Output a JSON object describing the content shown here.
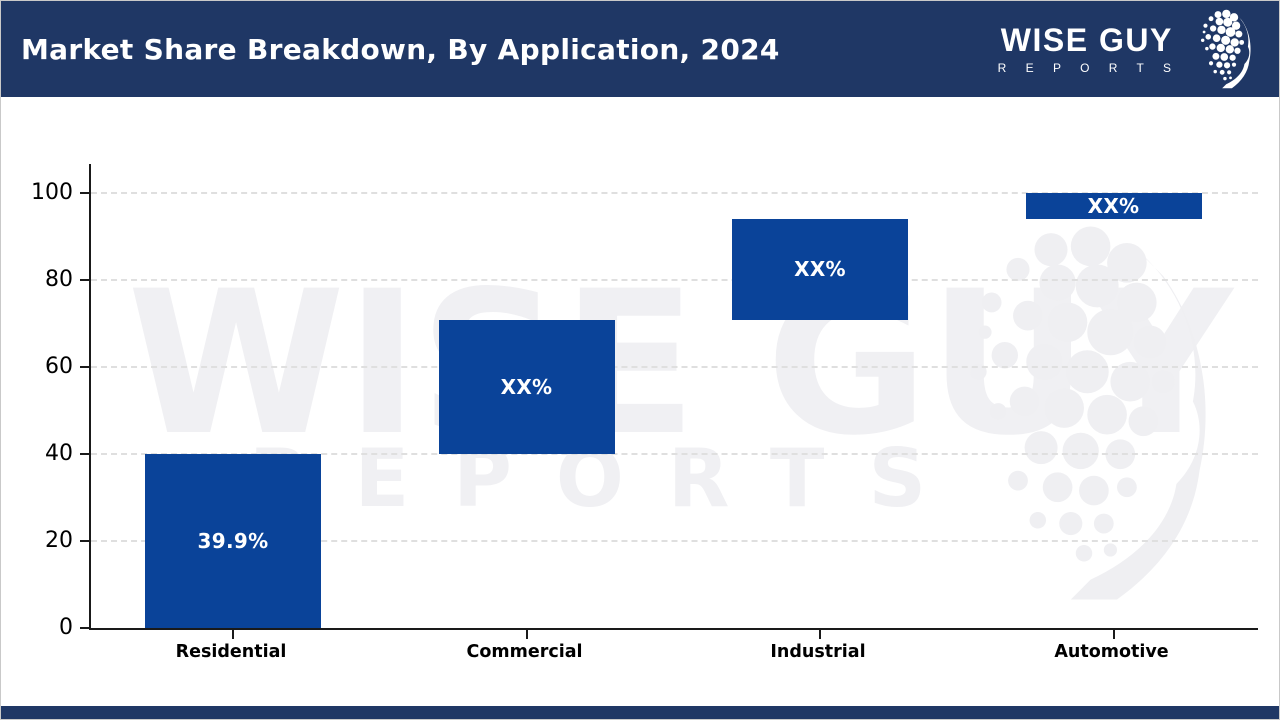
{
  "header": {
    "title": "Market Share Breakdown, By Application, 2024",
    "bg_color": "#1f3765",
    "logo_line1": "WISE GUY",
    "logo_line2": "R E P O R T S"
  },
  "watermark": {
    "line1": "WISE GUY",
    "line2": "REPORTS"
  },
  "chart_data": {
    "type": "bar",
    "subtype": "waterfall",
    "title": "Market Share Breakdown, By Application, 2024",
    "unit": "%",
    "categories": [
      "Residential",
      "Commercial",
      "Industrial",
      "Automotive"
    ],
    "segments": [
      {
        "category": "Residential",
        "start": 0,
        "end": 39.9,
        "label": "39.9%"
      },
      {
        "category": "Commercial",
        "start": 39.9,
        "end": 70.9,
        "label": "XX%"
      },
      {
        "category": "Industrial",
        "start": 70.9,
        "end": 94.0,
        "label": "XX%"
      },
      {
        "category": "Automotive",
        "start": 94.0,
        "end": 100,
        "label": "XX%"
      }
    ],
    "yticks": [
      0,
      20,
      40,
      60,
      80,
      100
    ],
    "ylim": [
      0,
      100
    ],
    "xlabel": "",
    "ylabel": "",
    "legend": "none",
    "grid": "horizontal-dashed",
    "grid_color": "#dfdfdf",
    "axis_color": "#1a1a1a",
    "bar_color": "#0a4399",
    "bar_label_color": "#ffffff"
  }
}
